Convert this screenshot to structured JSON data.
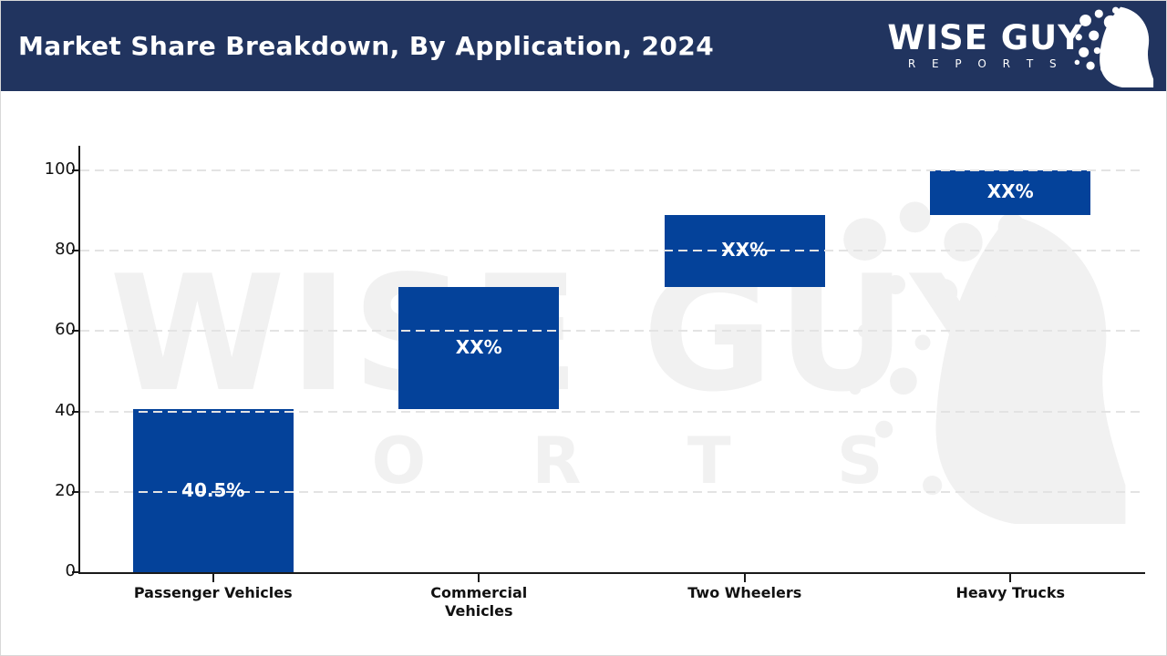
{
  "header": {
    "title": "Market Share Breakdown, By Application, 2024",
    "bg_color": "#21345f",
    "logo": {
      "line1": "WISE GUY",
      "line2": "R E P O R T S"
    }
  },
  "watermark": {
    "line1": "WISE GUY",
    "line2": "P O R T S"
  },
  "chart_data": {
    "type": "bar",
    "subtype": "waterfall",
    "title": "Market Share Breakdown, By Application, 2024",
    "categories": [
      "Passenger Vehicles",
      "Commercial Vehicles",
      "Two Wheelers",
      "Heavy Trucks"
    ],
    "category_lines": [
      [
        "Passenger Vehicles"
      ],
      [
        "Commercial",
        "Vehicles"
      ],
      [
        "Two Wheelers"
      ],
      [
        "Heavy Trucks"
      ]
    ],
    "series": [
      {
        "name": "Market Share",
        "segments": [
          {
            "category": "Passenger Vehicles",
            "start": 0,
            "end": 40.5,
            "value": 40.5,
            "label": "40.5%"
          },
          {
            "category": "Commercial Vehicles",
            "start": 40.5,
            "end": 71,
            "value": 30.5,
            "label": "XX%"
          },
          {
            "category": "Two Wheelers",
            "start": 71,
            "end": 89,
            "value": 18,
            "label": "XX%"
          },
          {
            "category": "Heavy Trucks",
            "start": 89,
            "end": 100,
            "value": 11,
            "label": "XX%"
          }
        ]
      }
    ],
    "xlabel": "",
    "ylabel": "",
    "ylim": [
      0,
      100
    ],
    "yticks": [
      0,
      20,
      40,
      60,
      80,
      100
    ],
    "grid": "horizontal-dashed-above-bars",
    "legend": "none",
    "bar_color": "#04429a",
    "bar_label_color": "#ffffff"
  }
}
